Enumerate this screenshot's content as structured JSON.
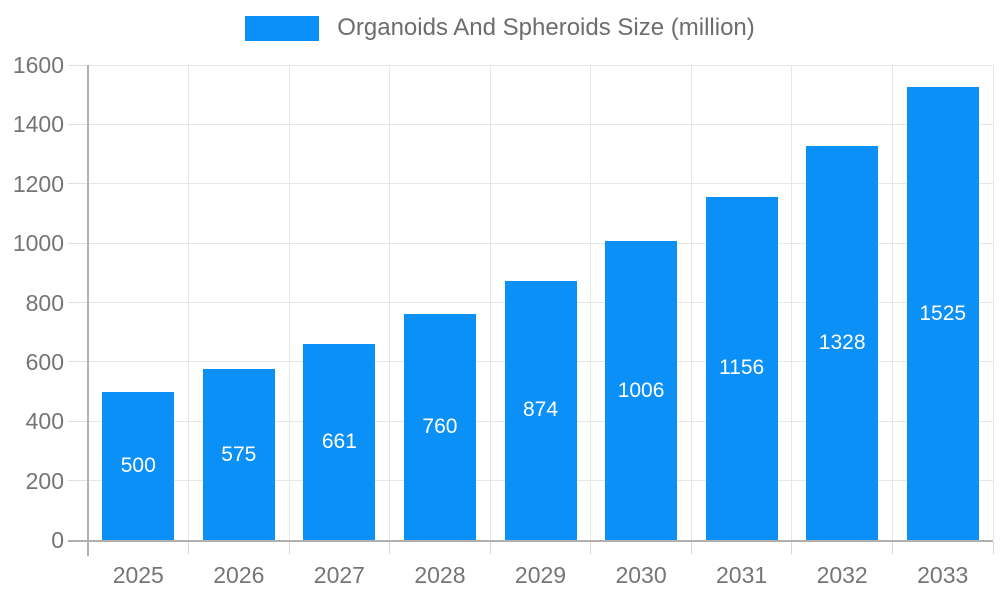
{
  "legend": {
    "label": "Organoids And Spheroids Size (million)"
  },
  "chart_data": {
    "type": "bar",
    "title": "Organoids And Spheroids Size (million)",
    "categories": [
      "2025",
      "2026",
      "2027",
      "2028",
      "2029",
      "2030",
      "2031",
      "2032",
      "2033"
    ],
    "values": [
      500,
      575,
      661,
      760,
      874,
      1006,
      1156,
      1328,
      1525
    ],
    "xlabel": "",
    "ylabel": "",
    "ylim": [
      0,
      1600
    ],
    "ytick_step": 200,
    "yticks": [
      0,
      200,
      400,
      600,
      800,
      1000,
      1200,
      1400,
      1600
    ],
    "grid": true,
    "legend_position": "top-center",
    "colors": {
      "bar": "#0a90f6",
      "value_label": "#ffffff",
      "axis_text": "#757575",
      "legend_text": "#6d6d6d",
      "gridline": "#e6e6e6",
      "axis_line": "#b0b0b0"
    }
  }
}
